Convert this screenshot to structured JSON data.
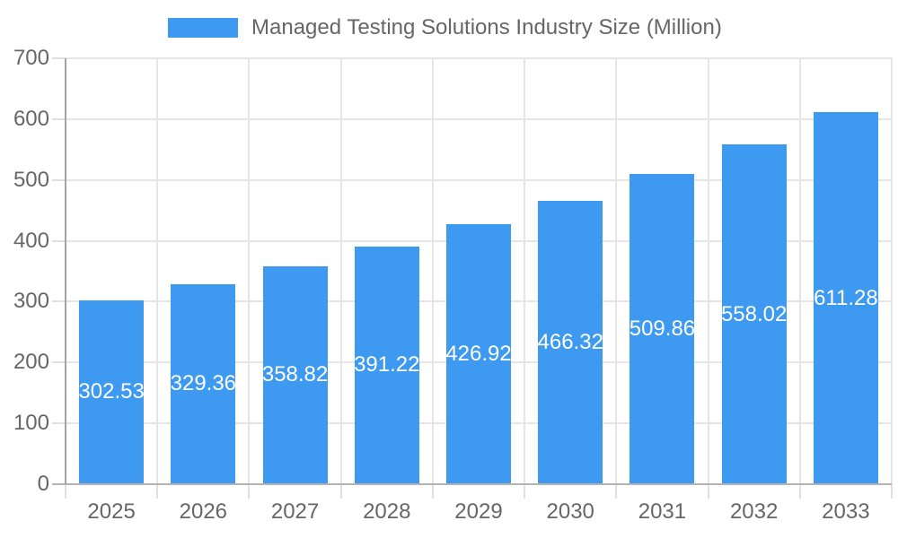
{
  "legend": {
    "label": "Managed Testing Solutions Industry Size (Million)"
  },
  "chart_data": {
    "type": "bar",
    "title": "Managed Testing Solutions Industry Size (Million)",
    "categories": [
      "2025",
      "2026",
      "2027",
      "2028",
      "2029",
      "2030",
      "2031",
      "2032",
      "2033"
    ],
    "values": [
      302.53,
      329.36,
      358.82,
      391.22,
      426.92,
      466.32,
      509.86,
      558.02,
      611.28
    ],
    "value_labels": [
      "302.53",
      "329.36",
      "358.82",
      "391.22",
      "426.92",
      "466.32",
      "509.86",
      "558.02",
      "611.28"
    ],
    "xlabel": "",
    "ylabel": "",
    "ylim": [
      0,
      700
    ],
    "yticks": [
      0,
      100,
      200,
      300,
      400,
      500,
      600,
      700
    ],
    "grid": true,
    "legend_position": "top",
    "bar_color": "#3d9af0",
    "bar_label_color": "#ffffff",
    "axis_text_color": "#666666",
    "gridline_color": "#e6e6e6",
    "tick_color": "#e0e0e0",
    "y_axis_line_color": "#a3a3a3",
    "x_axis_line_color": "#b3b3b3"
  }
}
